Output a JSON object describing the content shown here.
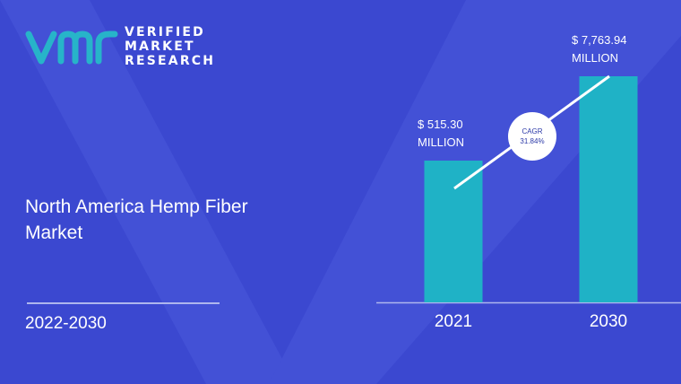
{
  "brand": {
    "line1": "VERIFIED",
    "line2": "MARKET",
    "line3": "RESEARCH",
    "logo_color": "#27b4c9"
  },
  "title": "North America Hemp Fiber Market",
  "period": "2022-2030",
  "colors": {
    "background": "#3b48d0",
    "bar": "#1fb2c6",
    "text": "#ffffff",
    "cagr_circle": "#ffffff",
    "cagr_text": "#2c3aa8"
  },
  "chart_data": {
    "type": "bar",
    "categories": [
      "2021",
      "2030"
    ],
    "values": [
      515.3,
      7763.94
    ],
    "value_labels": [
      {
        "amount": "$ 515.30",
        "unit": "MILLION"
      },
      {
        "amount": "$ 7,763.94",
        "unit": "MILLION"
      }
    ],
    "annotation": {
      "label": "CAGR",
      "value": "31.84%"
    },
    "grid": false
  }
}
